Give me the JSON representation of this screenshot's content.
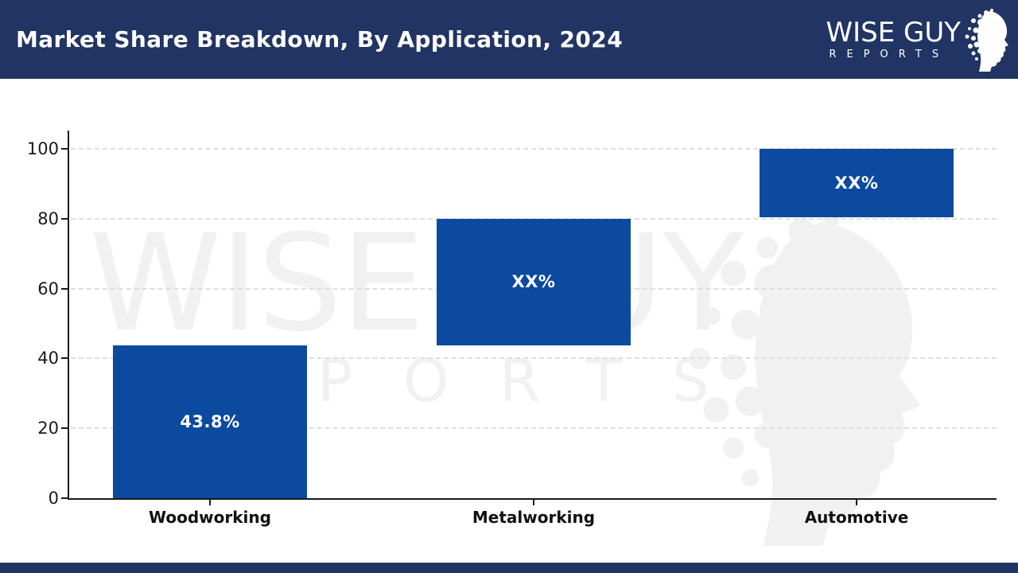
{
  "header": {
    "title": "Market Share Breakdown, By Application, 2024",
    "logo": {
      "wordmark": "WISE GUY",
      "subtext": "REPORTS"
    }
  },
  "watermark": {
    "wordmark": "WISE GUY",
    "subtext": "REPORTS"
  },
  "footer": {},
  "colors": {
    "header_bg": "#213463",
    "footer_bg": "#213463",
    "bar": "#0b4a9e",
    "bar_label": "#ffffff",
    "axis": "#1a1a1a",
    "gridline": "#dedede",
    "watermark": "#f1f1f1"
  },
  "chart_data": {
    "type": "bar",
    "subtype": "floating-waterfall",
    "title": "Market Share Breakdown, By Application, 2024",
    "categories": [
      "Woodworking",
      "Metalworking",
      "Automotive"
    ],
    "segments": [
      {
        "category": "Woodworking",
        "start": 0,
        "end": 43.8,
        "label": "43.8%"
      },
      {
        "category": "Metalworking",
        "start": 43.8,
        "end": 80,
        "label": "XX%"
      },
      {
        "category": "Automotive",
        "start": 80.3,
        "end": 100,
        "label": "XX%"
      }
    ],
    "ylim": [
      0,
      100
    ],
    "yticks": [
      0,
      20,
      40,
      60,
      80,
      100
    ],
    "xlabel": "",
    "ylabel": "",
    "grid": "horizontal dashed",
    "legend": "none"
  }
}
